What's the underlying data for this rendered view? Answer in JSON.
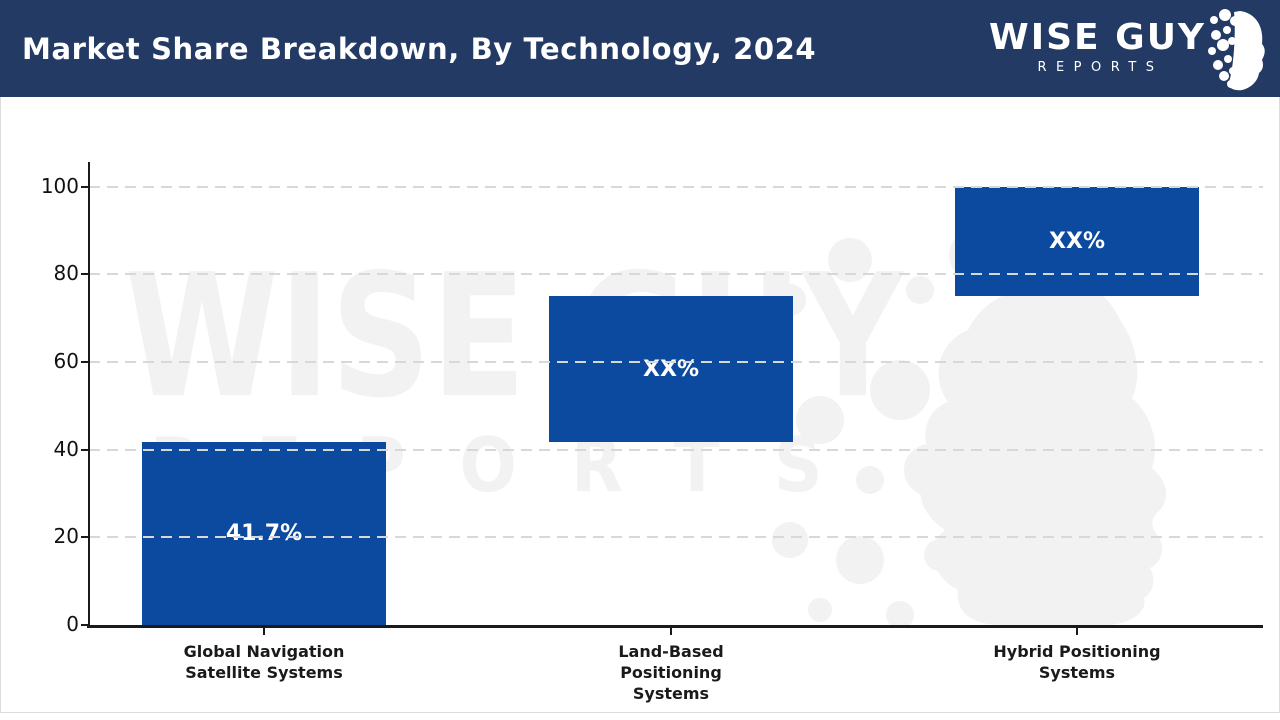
{
  "header": {
    "title": "Market Share Breakdown, By Technology, 2024",
    "logo_line1": "WISE GUY",
    "logo_line2": "REPORTS"
  },
  "watermark": {
    "line1": "WISE GUY",
    "line2": "REPORTS"
  },
  "colors": {
    "header_bg": "#233a64",
    "bar_fill": "#0b4a9e",
    "grid": "#d8d8d8",
    "axis": "#1a1a1a",
    "watermark": "#f2f2f3",
    "bar_label_text": "#ffffff"
  },
  "chart_data": {
    "type": "bar",
    "subtype": "stepped-cumulative",
    "title": "Market Share Breakdown, By Technology, 2024",
    "categories": [
      "Global Navigation Satellite Systems",
      "Land-Based Positioning Systems",
      "Hybrid Positioning Systems"
    ],
    "category_label_lines": [
      [
        "Global Navigation",
        "Satellite Systems"
      ],
      [
        "Land-Based",
        "Positioning",
        "Systems"
      ],
      [
        "Hybrid Positioning",
        "Systems"
      ]
    ],
    "bars": [
      {
        "category": "Global Navigation Satellite Systems",
        "from": 0,
        "to": 41.7,
        "value_label": "41.7%",
        "value": 41.7
      },
      {
        "category": "Land-Based Positioning Systems",
        "from": 41.7,
        "to": 75,
        "value_label": "XX%",
        "value": null
      },
      {
        "category": "Hybrid Positioning Systems",
        "from": 75,
        "to": 100,
        "value_label": "XX%",
        "value": null
      }
    ],
    "xlabel": "",
    "ylabel": "",
    "ylim": [
      0,
      100
    ],
    "yticks": [
      0,
      20,
      40,
      60,
      80,
      100
    ],
    "grid": {
      "horizontal": true,
      "style": "dashed"
    },
    "legend": null
  }
}
